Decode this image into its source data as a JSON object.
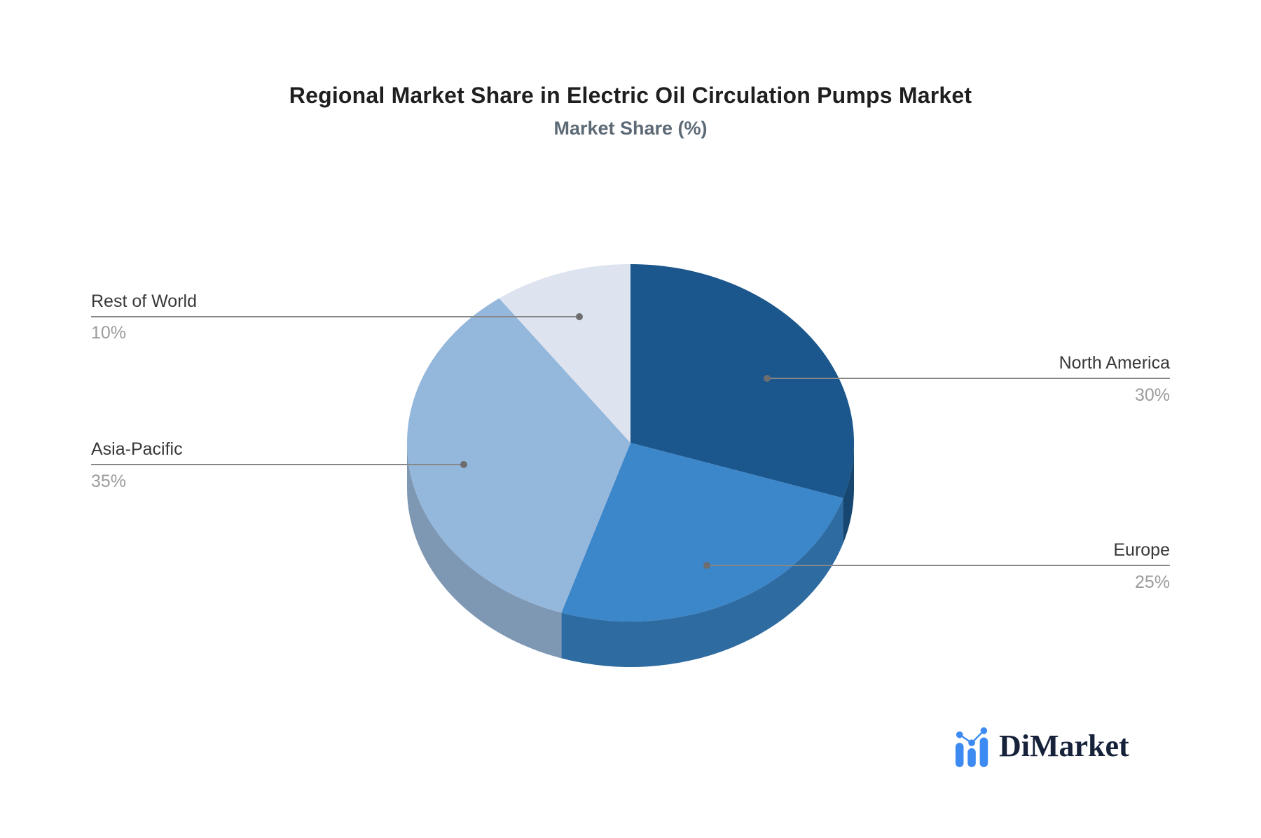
{
  "chart_data": {
    "type": "pie",
    "title": "Regional Market Share in Electric Oil Circulation Pumps Market",
    "subtitle": "Market Share (%)",
    "unit": "%",
    "effect": "3d",
    "legend": "none",
    "label_style": "callout-leader-lines",
    "direction": "clockwise",
    "start_angle_deg": 0,
    "categories": [
      "North America",
      "Europe",
      "Asia-Pacific",
      "Rest of World"
    ],
    "values": [
      30,
      25,
      35,
      10
    ],
    "colors": [
      "#1b568c",
      "#3c86ca",
      "#94b7dc",
      "#dde4ef"
    ],
    "side_colors": [
      "#174771",
      "#2e6ba1",
      "#7e98b4",
      "#c5cedd"
    ],
    "slice_labels": [
      {
        "name": "North America",
        "value_text": "30%"
      },
      {
        "name": "Europe",
        "value_text": "25%"
      },
      {
        "name": "Asia-Pacific",
        "value_text": "35%"
      },
      {
        "name": "Rest of World",
        "value_text": "10%"
      }
    ]
  },
  "leader_style": {
    "line_color": "#878787",
    "dot_color": "#6d6d6d"
  },
  "branding": {
    "name": "DiMarket",
    "icon": "mini-bar-line-chart-icon",
    "accent": "#3d8bf2"
  }
}
